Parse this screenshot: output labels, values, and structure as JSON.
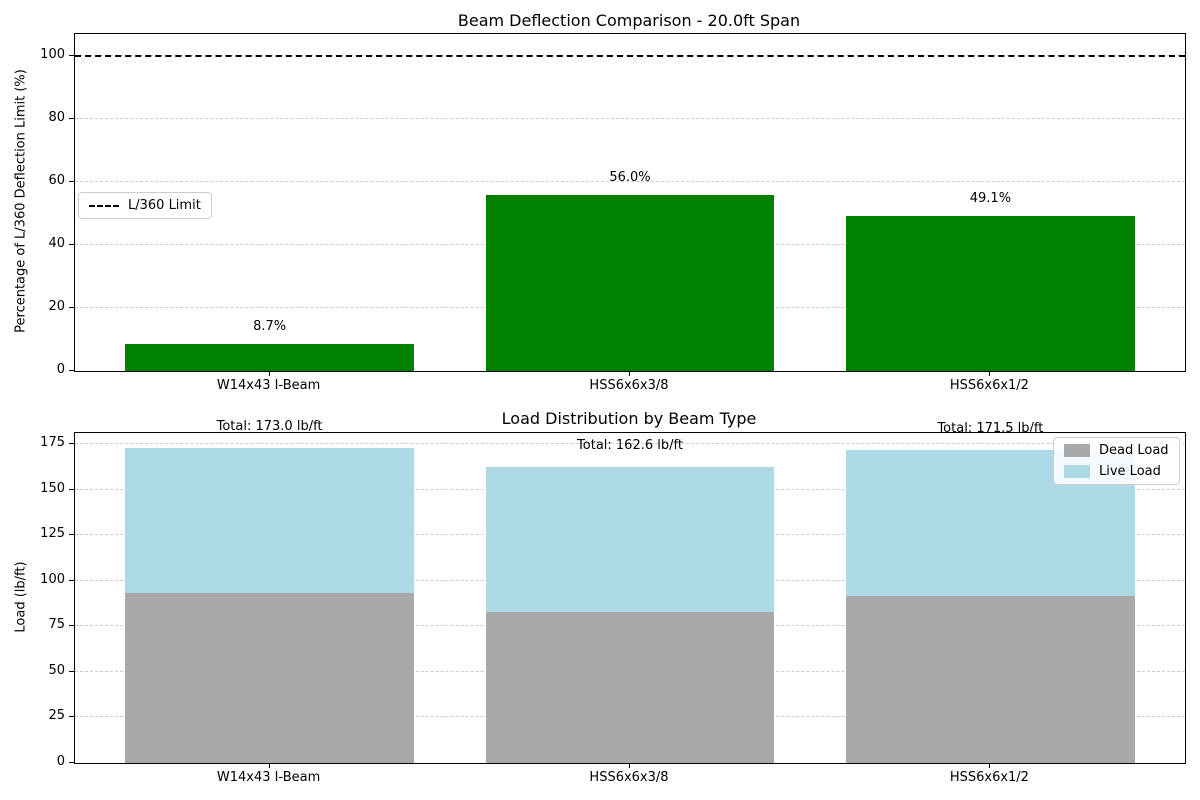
{
  "figure": {
    "background": "#ffffff"
  },
  "colors": {
    "deflection_bar": "#008000",
    "dead_load": "#a9a9a9",
    "live_load": "#add8e6",
    "limit_line": "#000000",
    "grid": "#cccccc"
  },
  "chart_data": [
    {
      "type": "bar",
      "title": "Beam Deflection Comparison - 20.0ft Span",
      "xlabel": "",
      "ylabel": "Percentage of L/360 Deflection Limit (%)",
      "categories": [
        "W14x43 I-Beam",
        "HSS6x6x3/8",
        "HSS6x6x1/2"
      ],
      "values": [
        8.7,
        56.0,
        49.1
      ],
      "value_labels": [
        "8.7%",
        "56.0%",
        "49.1%"
      ],
      "bar_color": "#008000",
      "yticks": [
        0,
        20,
        40,
        60,
        80,
        100
      ],
      "ylim": [
        0,
        107
      ],
      "grid": true,
      "reference_line": {
        "value": 100,
        "label": "L/360 Limit",
        "color": "#000000",
        "style": "dashed"
      },
      "legend_position": "center left"
    },
    {
      "type": "bar",
      "stacked": true,
      "title": "Load Distribution by Beam Type",
      "xlabel": "",
      "ylabel": "Load (lb/ft)",
      "categories": [
        "W14x43 I-Beam",
        "HSS6x6x3/8",
        "HSS6x6x1/2"
      ],
      "series": [
        {
          "name": "Dead Load",
          "color": "#a9a9a9",
          "values": [
            93.0,
            82.6,
            91.5
          ]
        },
        {
          "name": "Live Load",
          "color": "#add8e6",
          "values": [
            80.0,
            80.0,
            80.0
          ]
        }
      ],
      "totals": [
        173.0,
        162.6,
        171.5
      ],
      "total_labels": [
        "Total: 173.0 lb/ft",
        "Total: 162.6 lb/ft",
        "Total: 171.5 lb/ft"
      ],
      "yticks": [
        0,
        25,
        50,
        75,
        100,
        125,
        150,
        175
      ],
      "ylim": [
        0,
        181
      ],
      "grid": true,
      "legend_position": "upper right"
    }
  ]
}
